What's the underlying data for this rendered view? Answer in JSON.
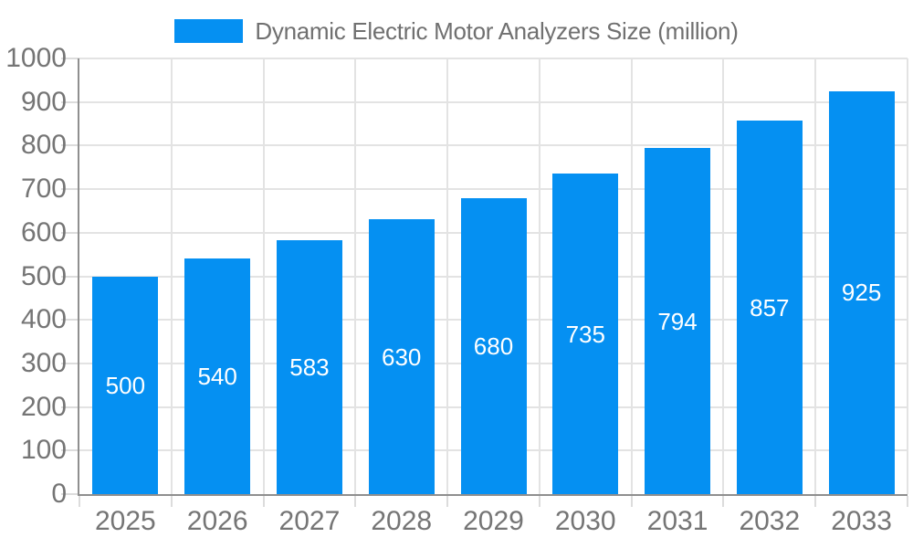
{
  "chart_data": {
    "type": "bar",
    "title": "Dynamic Electric Motor Analyzers Size (million)",
    "categories": [
      "2025",
      "2026",
      "2027",
      "2028",
      "2029",
      "2030",
      "2031",
      "2032",
      "2033"
    ],
    "series": [
      {
        "name": "Dynamic Electric Motor Analyzers Size (million)",
        "values": [
          500,
          540,
          583,
          630,
          680,
          735,
          794,
          857,
          925
        ]
      }
    ],
    "xlabel": "",
    "ylabel": "",
    "ylim": [
      0,
      1000
    ],
    "yticks": [
      0,
      100,
      200,
      300,
      400,
      500,
      600,
      700,
      800,
      900,
      1000
    ],
    "grid": true,
    "legend_position": "top-center",
    "bar_value_labels_position": "inside-center",
    "colors": {
      "bar": "#0590F2",
      "bar_value_label": "#FFFFFF",
      "axis_text": "#757575",
      "legend_text": "#707070",
      "grid_line": "#E3E3E3",
      "tick_line": "#DCDCDC",
      "axis_line": "#8F8F8F",
      "background": "#FFFFFF"
    }
  }
}
